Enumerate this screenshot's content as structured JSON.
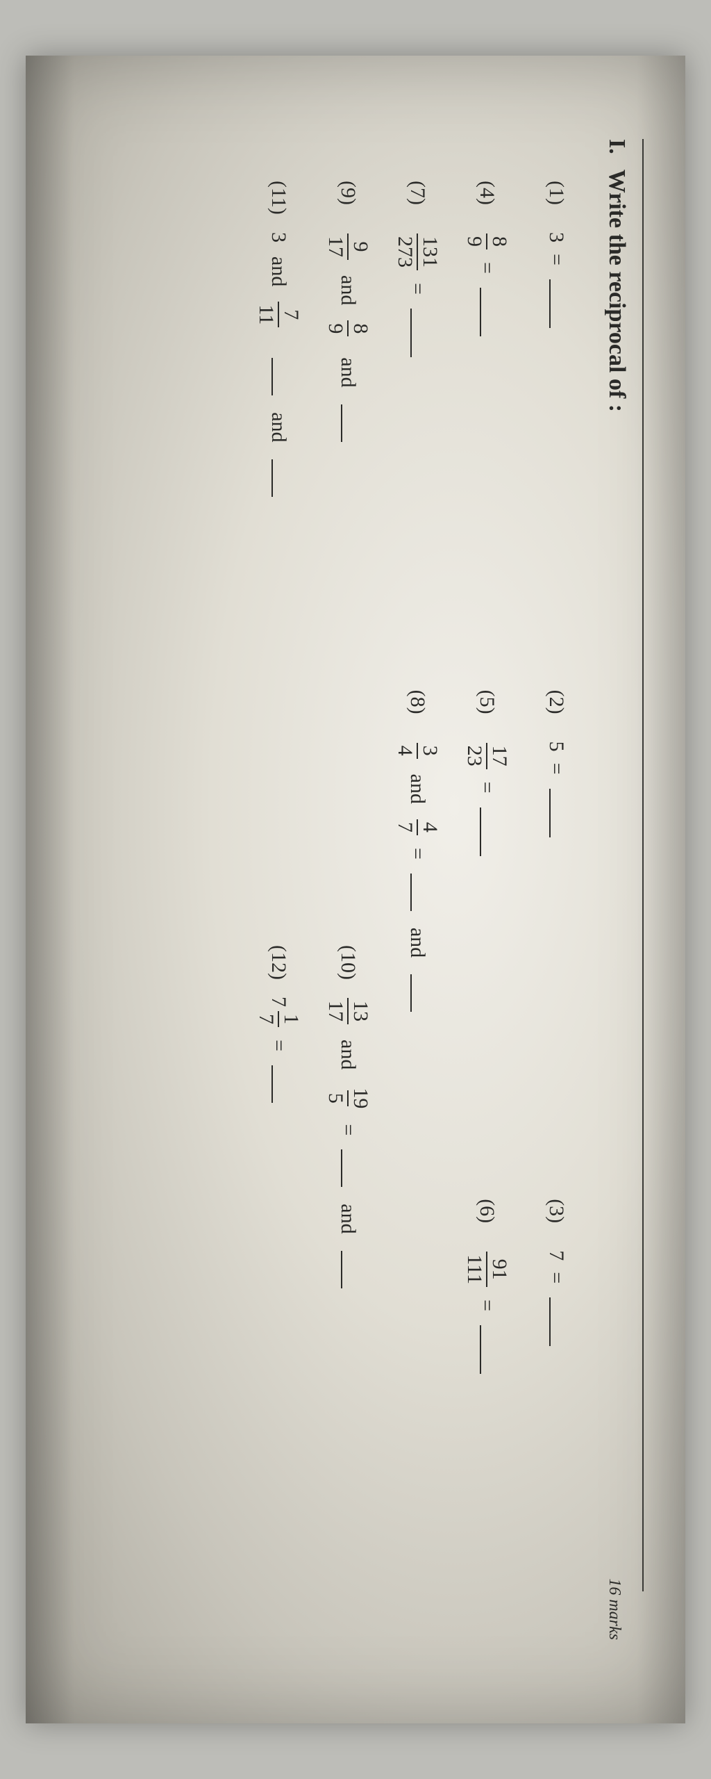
{
  "section": {
    "number": "I.",
    "title": "Write the reciprocal of :",
    "marks": "16 marks"
  },
  "items": [
    {
      "n": "(1)",
      "kind": "int_eq_blank",
      "int": "3"
    },
    {
      "n": "(2)",
      "kind": "int_eq_blank",
      "int": "5"
    },
    {
      "n": "(3)",
      "kind": "int_eq_blank",
      "int": "7"
    },
    {
      "n": "(4)",
      "kind": "frac_eq_blank",
      "num": "8",
      "den": "9"
    },
    {
      "n": "(5)",
      "kind": "frac_eq_blank",
      "num": "17",
      "den": "23"
    },
    {
      "n": "(6)",
      "kind": "frac_eq_blank",
      "num": "91",
      "den": "111"
    },
    {
      "n": "(7)",
      "kind": "frac_eq_blank",
      "num": "131",
      "den": "273"
    },
    {
      "n": "(8)",
      "kind": "pair_eq_pair",
      "a": {
        "num": "3",
        "den": "4"
      },
      "b": {
        "num": "4",
        "den": "7"
      }
    },
    {
      "n": "(9)",
      "kind": "pair_text_pair",
      "a": {
        "num": "9",
        "den": "17"
      },
      "b": {
        "num": "8",
        "den": "9"
      }
    },
    {
      "n": "(10)",
      "kind": "pair_eq_pair",
      "a": {
        "num": "13",
        "den": "17"
      },
      "b": {
        "num": "19",
        "den": "5"
      }
    },
    {
      "n": "(11)",
      "kind": "int_and_frac_pair",
      "int": "3",
      "b": {
        "num": "7",
        "den": "11"
      }
    },
    {
      "n": "(12)",
      "kind": "mixed_eq_blank",
      "whole": "7",
      "num": "1",
      "den": "7"
    }
  ],
  "words": {
    "and": "and"
  }
}
